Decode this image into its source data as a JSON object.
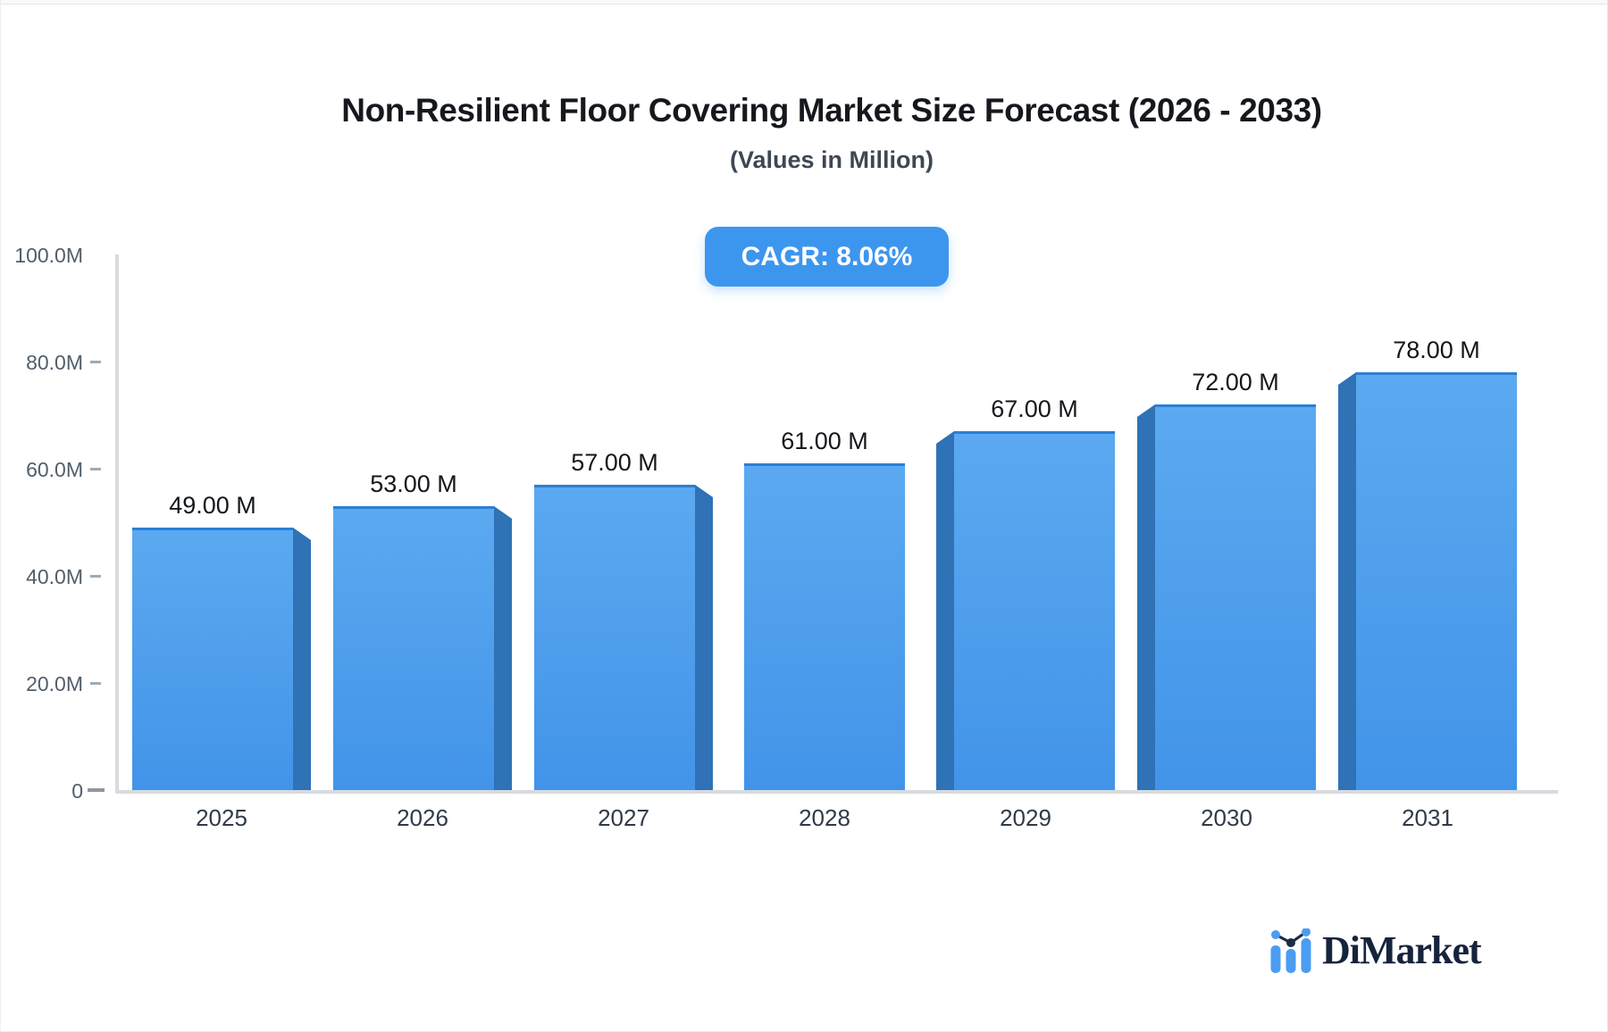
{
  "page": {
    "cagr_label": "CAGR: 8.06%",
    "brand": "DiMarket"
  },
  "chart_data": {
    "type": "bar",
    "title": "Non-Resilient Floor Covering Market Size Forecast (2026 - 2033)",
    "subtitle": "(Values in Million)",
    "unit": "Million",
    "cagr_percent": 8.06,
    "categories": [
      "2025",
      "2026",
      "2027",
      "2028",
      "2029",
      "2030",
      "2031"
    ],
    "values_millions": [
      49,
      53,
      57,
      61,
      67,
      72,
      78
    ],
    "bar_value_labels": [
      "49.00 M",
      "53.00 M",
      "57.00 M",
      "61.00 M",
      "67.00 M",
      "72.00 M",
      "78.00 M"
    ],
    "y_axis": {
      "tick_labels": [
        "100.0M",
        "80.0M",
        "60.0M",
        "40.0M",
        "20.0M",
        "0"
      ],
      "tick_values_millions": [
        100,
        80,
        60,
        40,
        20,
        0
      ],
      "range_millions": [
        0,
        100
      ]
    },
    "grid": false,
    "legend": false,
    "bar_style": "3d-extruded",
    "colors": {
      "bar_face_top": "#5BA9F0",
      "bar_face_bottom": "#4294E9",
      "bar_top_edge": "#2B7FD4",
      "bar_side": "#2F72B5",
      "badge_bg": "#3D96EE",
      "badge_text": "#FFFFFF",
      "axis_line": "#D7DADF",
      "tick": "#A2AAB4",
      "y_label": "#525E6B",
      "x_label": "#303B49",
      "value_label": "#14171B",
      "title": "#15181D",
      "subtitle": "#3E4753",
      "logo_text": "#16233D",
      "logo_blue": "#4B9DF2",
      "logo_dark": "#1D2B45"
    }
  }
}
